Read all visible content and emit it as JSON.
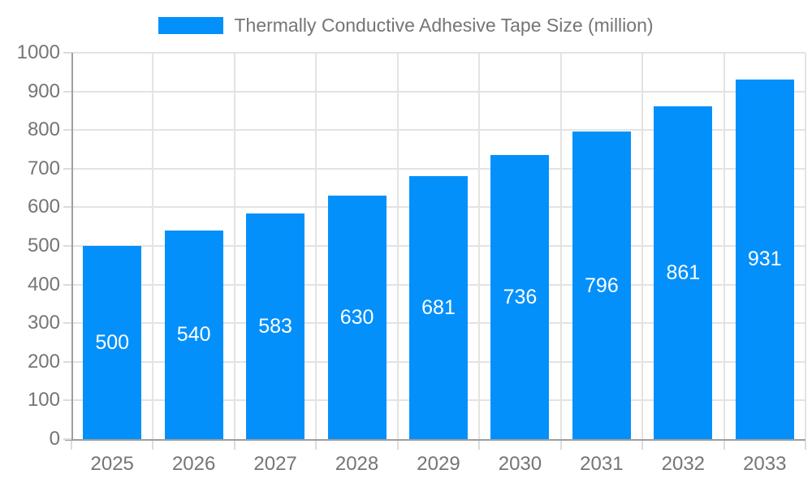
{
  "legend": {
    "label": "Thermally Conductive Adhesive Tape Size (million)"
  },
  "colors": {
    "bar": "#0490fb",
    "grid": "#e3e3e3",
    "axis": "#9e9e9e",
    "tick": "#dcdcdc",
    "text": "#757575",
    "bar_label": "#ffffff",
    "background": "#ffffff"
  },
  "chart_data": {
    "type": "bar",
    "title": "Thermally Conductive Adhesive Tape Size (million)",
    "categories": [
      "2025",
      "2026",
      "2027",
      "2028",
      "2029",
      "2030",
      "2031",
      "2032",
      "2033"
    ],
    "values": [
      500,
      540,
      583,
      630,
      681,
      736,
      796,
      861,
      931
    ],
    "xlabel": "",
    "ylabel": "",
    "ylim": [
      0,
      1000
    ],
    "ytick_step": 100,
    "ytick_labels": [
      "0",
      "100",
      "200",
      "300",
      "400",
      "500",
      "600",
      "700",
      "800",
      "900",
      "1000"
    ],
    "grid": true,
    "legend_position": "top",
    "bar_labels_visible": true,
    "bar_label_position": "center"
  }
}
